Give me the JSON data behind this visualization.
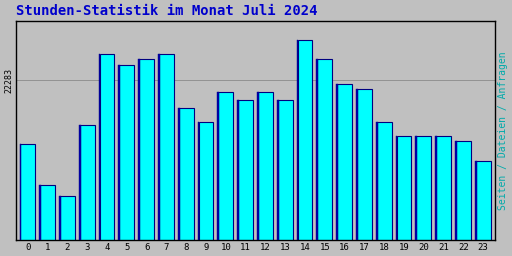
{
  "title": "Stunden-Statistik im Monat Juli 2024",
  "title_color": "#0000cc",
  "title_fontsize": 10,
  "ylabel": "Seiten / Dateien / Anfragen",
  "ylabel_color": "#00aaaa",
  "ylabel_fontsize": 7,
  "ytick_label": "22283",
  "background_color": "#c0c0c0",
  "plot_bg_color": "#c0c0c0",
  "bar_face_color": "#00ffff",
  "bar_edge_color": "#000080",
  "bar_width": 0.75,
  "categories": [
    0,
    1,
    2,
    3,
    4,
    5,
    6,
    7,
    8,
    9,
    10,
    11,
    12,
    13,
    14,
    15,
    16,
    17,
    18,
    19,
    20,
    21,
    22,
    23
  ],
  "values": [
    22050,
    21900,
    21860,
    22120,
    22380,
    22340,
    22360,
    22380,
    22180,
    22130,
    22240,
    22210,
    22240,
    22210,
    22430,
    22360,
    22270,
    22250,
    22130,
    22080,
    22080,
    22080,
    22060,
    21990
  ],
  "ymin": 21700,
  "ymax": 22500,
  "ytick_val": 22283,
  "xlim_left": -0.6,
  "xlim_right": 23.6
}
